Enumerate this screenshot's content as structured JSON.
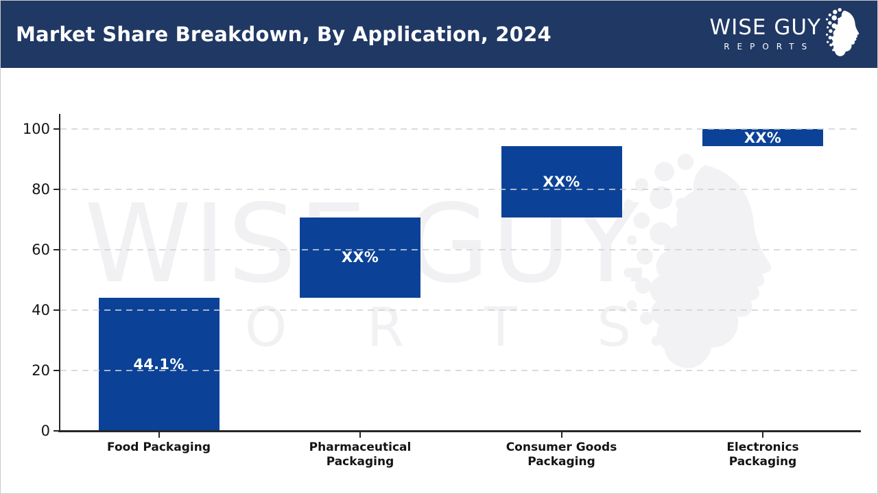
{
  "header": {
    "title": "Market Share Breakdown, By Application, 2024",
    "logo": {
      "line1": "WISE GUY",
      "line2": "REPORTS",
      "head_icon": "dotted-head-profile-icon"
    }
  },
  "watermark": {
    "line1": "WISE GUY.",
    "line2": "P O R T S",
    "head_icon": "dotted-head-profile-watermark"
  },
  "colors": {
    "header_bg": "#203864",
    "bar_fill": "#0B4297",
    "bar_label": "#FFFFFF",
    "axis": "#262626",
    "gridline": "#D9D9D9",
    "watermark": "#F2F2F4"
  },
  "chart_data": {
    "type": "bar",
    "subtype": "waterfall-floating-bars",
    "title": "Market Share Breakdown, By Application, 2024",
    "xlabel": "",
    "ylabel": "",
    "ylim": [
      0,
      100
    ],
    "yticks": [
      0,
      20,
      40,
      60,
      80,
      100
    ],
    "grid": "dashed-horizontal",
    "legend": "none",
    "categories": [
      "Food Packaging",
      "Pharmaceutical\nPackaging",
      "Consumer Goods\nPackaging",
      "Electronics\nPackaging"
    ],
    "segments": [
      {
        "category": "Food Packaging",
        "start": 0,
        "end": 44.1,
        "label": "44.1%"
      },
      {
        "category": "Pharmaceutical Packaging",
        "start": 44.1,
        "end": 70.7,
        "label": "XX%"
      },
      {
        "category": "Consumer Goods Packaging",
        "start": 70.7,
        "end": 94.3,
        "label": "XX%"
      },
      {
        "category": "Electronics Packaging",
        "start": 94.3,
        "end": 100,
        "label": "XX%"
      }
    ]
  }
}
